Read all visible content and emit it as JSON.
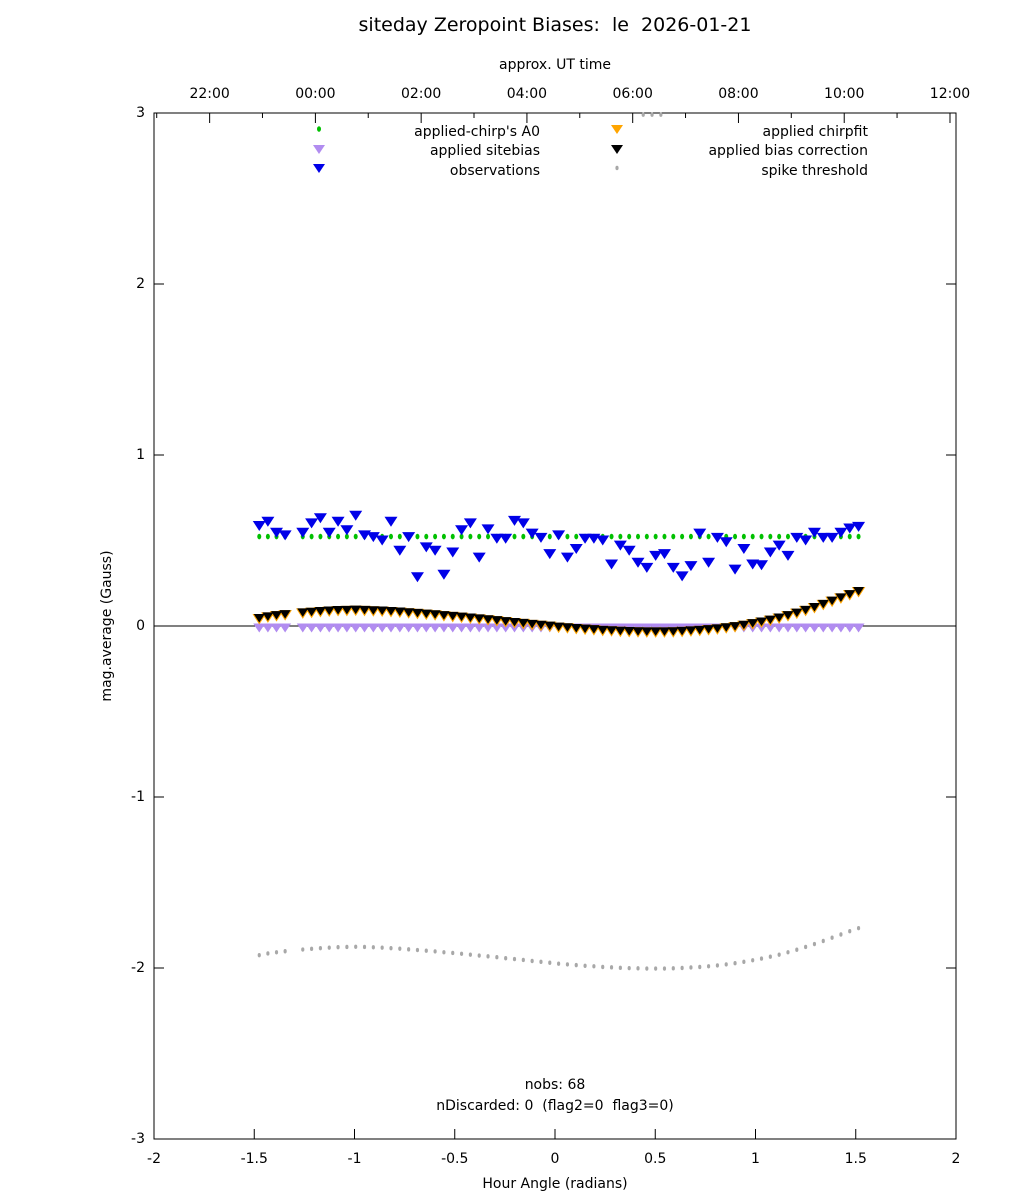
{
  "title": "siteday Zeropoint Biases:  le  2026-01-21",
  "annotations": {
    "nobs_line": "nobs: 68",
    "ndiscarded_line": "nDiscarded: 0  (flag2=0  flag3=0)"
  },
  "chart_data": {
    "type": "scatter",
    "title": "siteday Zeropoint Biases:  le  2026-01-21",
    "xlabel": "Hour Angle (radians)",
    "x2label": "approx. UT time",
    "ylabel": "mag.average (Gauss)",
    "xlim": [
      -2,
      2
    ],
    "ylim": [
      -3,
      3
    ],
    "grid": false,
    "zero_line_y": 0,
    "x_ticks": [
      -2,
      -1.5,
      -1,
      -0.5,
      0,
      0.5,
      1,
      1.5,
      2
    ],
    "x_tick_labels": [
      "-2",
      "-1.5",
      "-1",
      "-0.5",
      "0",
      "0.5",
      "1",
      "1.5",
      "2"
    ],
    "y_ticks": [
      -3,
      -2,
      -1,
      0,
      1,
      2,
      3
    ],
    "y_tick_labels": [
      "-3",
      "-2",
      "-1",
      "0",
      "1",
      "2",
      "3"
    ],
    "ut_ticks": {
      "labels": [
        "22:00",
        "00:00",
        "02:00",
        "04:00",
        "06:00",
        "08:00",
        "10:00",
        "12:00"
      ],
      "positions_hour_angle": [
        -1.7225,
        -1.195,
        -0.6675,
        -0.14,
        0.3875,
        0.915,
        1.4425,
        1.97
      ],
      "minor_positions_hour_angle": [
        -1.9865,
        -1.459,
        -0.9315,
        -0.404,
        0.1235,
        0.651,
        1.1785,
        1.706
      ]
    },
    "legend_position": "top-center-two-columns",
    "x": [
      -1.475,
      -1.432,
      -1.389,
      -1.346,
      -1.258,
      -1.214,
      -1.17,
      -1.126,
      -1.082,
      -1.038,
      -0.994,
      -0.95,
      -0.906,
      -0.862,
      -0.818,
      -0.774,
      -0.73,
      -0.686,
      -0.642,
      -0.598,
      -0.554,
      -0.51,
      -0.466,
      -0.422,
      -0.378,
      -0.334,
      -0.29,
      -0.246,
      -0.202,
      -0.158,
      -0.114,
      -0.07,
      -0.026,
      0.018,
      0.062,
      0.106,
      0.15,
      0.194,
      0.238,
      0.282,
      0.326,
      0.37,
      0.414,
      0.458,
      0.502,
      0.546,
      0.59,
      0.634,
      0.678,
      0.722,
      0.766,
      0.81,
      0.854,
      0.898,
      0.942,
      0.986,
      1.03,
      1.074,
      1.118,
      1.162,
      1.206,
      1.25,
      1.294,
      1.338,
      1.382,
      1.426,
      1.47,
      1.514
    ],
    "series": [
      {
        "name": "applied-chirp's A0",
        "marker": "green-dot",
        "color": "#00C000",
        "constant": 0.523
      },
      {
        "name": "applied sitebias",
        "marker": "triangle-down",
        "color": "#B18CF0",
        "constant": -0.012
      },
      {
        "name": "observations",
        "marker": "triangle-down",
        "color": "#0000E8",
        "values": [
          0.585,
          0.61,
          0.545,
          0.53,
          0.545,
          0.6,
          0.63,
          0.545,
          0.61,
          0.56,
          0.645,
          0.53,
          0.52,
          0.5,
          0.61,
          0.44,
          0.52,
          0.285,
          0.46,
          0.44,
          0.3,
          0.43,
          0.56,
          0.6,
          0.4,
          0.565,
          0.51,
          0.51,
          0.615,
          0.6,
          0.54,
          0.515,
          0.42,
          0.53,
          0.4,
          0.45,
          0.51,
          0.51,
          0.5,
          0.36,
          0.47,
          0.44,
          0.37,
          0.34,
          0.41,
          0.42,
          0.34,
          0.29,
          0.35,
          0.54,
          0.37,
          0.515,
          0.49,
          0.33,
          0.45,
          0.36,
          0.355,
          0.43,
          0.47,
          0.41,
          0.515,
          0.5,
          0.545,
          0.515,
          0.515,
          0.545,
          0.57,
          0.58
        ]
      },
      {
        "name": "applied chirpfit",
        "marker": "triangle-down",
        "color": "#FFA500",
        "values_equal_to": "applied bias correction"
      },
      {
        "name": "applied bias correction",
        "marker": "triangle-down",
        "color": "#000000",
        "values": [
          0.045,
          0.055,
          0.062,
          0.068,
          0.078,
          0.082,
          0.086,
          0.089,
          0.092,
          0.093,
          0.094,
          0.093,
          0.091,
          0.089,
          0.086,
          0.083,
          0.079,
          0.075,
          0.071,
          0.067,
          0.062,
          0.058,
          0.053,
          0.048,
          0.043,
          0.038,
          0.033,
          0.027,
          0.022,
          0.017,
          0.011,
          0.006,
          0.001,
          -0.005,
          -0.009,
          -0.013,
          -0.017,
          -0.02,
          -0.024,
          -0.026,
          -0.029,
          -0.031,
          -0.032,
          -0.033,
          -0.033,
          -0.033,
          -0.032,
          -0.03,
          -0.027,
          -0.024,
          -0.02,
          -0.015,
          -0.009,
          -0.002,
          0.006,
          0.015,
          0.025,
          0.036,
          0.048,
          0.062,
          0.077,
          0.093,
          0.11,
          0.128,
          0.147,
          0.166,
          0.185,
          0.203
        ]
      },
      {
        "name": "spike threshold",
        "marker": "gray-dot",
        "color": "#A8A8A8",
        "values": [
          -1.925,
          -1.915,
          -1.908,
          -1.902,
          -1.892,
          -1.888,
          -1.884,
          -1.881,
          -1.878,
          -1.877,
          -1.876,
          -1.877,
          -1.879,
          -1.881,
          -1.884,
          -1.887,
          -1.891,
          -1.895,
          -1.899,
          -1.903,
          -1.908,
          -1.912,
          -1.917,
          -1.922,
          -1.927,
          -1.932,
          -1.937,
          -1.943,
          -1.948,
          -1.953,
          -1.959,
          -1.964,
          -1.969,
          -1.975,
          -1.979,
          -1.983,
          -1.987,
          -1.99,
          -1.994,
          -1.996,
          -1.999,
          -2.001,
          -2.002,
          -2.003,
          -2.003,
          -2.003,
          -2.002,
          -2.0,
          -1.997,
          -1.994,
          -1.99,
          -1.985,
          -1.979,
          -1.972,
          -1.964,
          -1.955,
          -1.945,
          -1.934,
          -1.922,
          -1.908,
          -1.893,
          -1.877,
          -1.86,
          -1.842,
          -1.823,
          -1.804,
          -1.785,
          -1.767
        ],
        "extra_points": [
          [
            0.44,
            2.99
          ],
          [
            0.484,
            2.99
          ],
          [
            0.528,
            2.99
          ]
        ]
      }
    ],
    "annotations": [
      "nobs: 68",
      "nDiscarded: 0  (flag2=0  flag3=0)"
    ]
  }
}
